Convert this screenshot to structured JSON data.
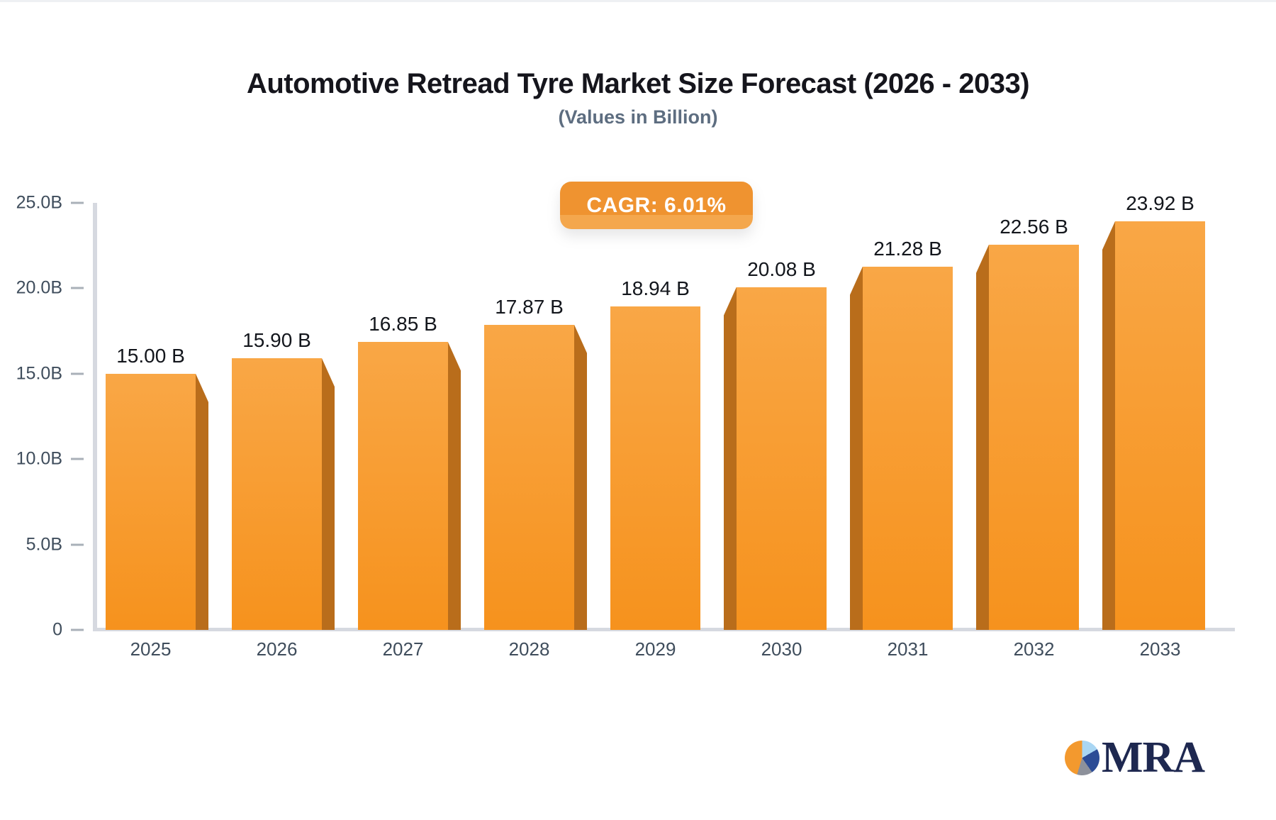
{
  "header": {
    "title": "Automotive Retread Tyre Market Size Forecast (2026 - 2033)",
    "subtitle": "(Values in Billion)"
  },
  "badge": {
    "label": "CAGR: 6.01%"
  },
  "logo": {
    "text": "MRA",
    "pie_icon": "pie-chart-icon"
  },
  "colors": {
    "title": "#15151c",
    "subtitle": "#5d6d80",
    "badge": "#ef9330",
    "badge_light": "#f4a74d",
    "bar_top": "#f9a746",
    "bar_bottom": "#f6921d",
    "bar_side": "#b96d1b",
    "axis_line": "#d6d9e0",
    "tick": "#a9b0b8",
    "axis_label": "#3f4d5c",
    "value_label": "#13161c",
    "navy": "#1e2850",
    "pie_orange": "#f3992e",
    "pie_lightblue": "#a9d6f3",
    "pie_blue": "#2c4c96",
    "pie_gray": "#8d919b"
  },
  "chart_data": {
    "type": "bar",
    "title": "Automotive Retread Tyre Market Size Forecast (2026 - 2033)",
    "subtitle": "(Values in Billion)",
    "cagr": "6.01%",
    "categories": [
      "2025",
      "2026",
      "2027",
      "2028",
      "2029",
      "2030",
      "2031",
      "2032",
      "2033"
    ],
    "values": [
      15.0,
      15.9,
      16.85,
      17.87,
      18.94,
      20.08,
      21.28,
      22.56,
      23.92
    ],
    "value_labels": [
      "15.00 B",
      "15.90 B",
      "16.85 B",
      "17.87 B",
      "18.94 B",
      "20.08 B",
      "21.28 B",
      "22.56 B",
      "23.92 B"
    ],
    "unit": "Billion",
    "xlabel": "",
    "ylabel": "",
    "ylim": [
      0,
      25
    ],
    "y_ticks": [
      {
        "label": "25.0B",
        "value": 25
      },
      {
        "label": "20.0B",
        "value": 20
      },
      {
        "label": "15.0B",
        "value": 15
      },
      {
        "label": "10.0B",
        "value": 10
      },
      {
        "label": "5.0B",
        "value": 5
      },
      {
        "label": "0",
        "value": 0
      }
    ],
    "grid": false,
    "legend": false,
    "style": "3d-perspective-bars"
  }
}
